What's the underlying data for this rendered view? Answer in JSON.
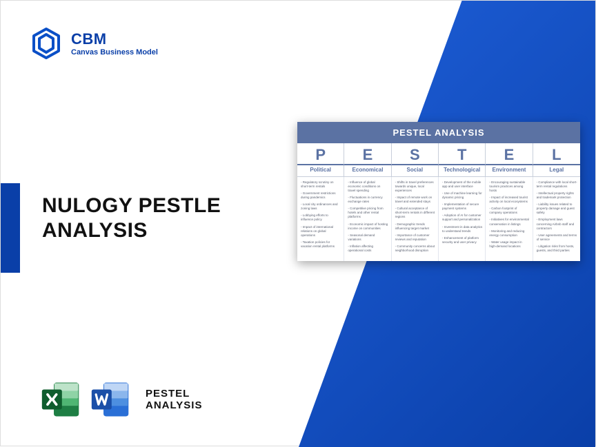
{
  "brand": {
    "name": "CBM",
    "tagline": "Canvas Business Model"
  },
  "title_line1": "NULOGY PESTLE",
  "title_line2": "ANALYSIS",
  "bottom_label_line1": "PESTEL",
  "bottom_label_line2": "ANALYSIS",
  "colors": {
    "blue_primary": "#0a3fa8",
    "blue_gradient_start": "#1e5fd9",
    "slate_header": "#5b72a3",
    "excel_green": "#1e7e44",
    "excel_green_dark": "#0f5d2e",
    "word_blue": "#2a6fd6",
    "word_blue_dark": "#1a4fa8"
  },
  "pestel": {
    "title": "PESTEL ANALYSIS",
    "columns": [
      {
        "letter": "P",
        "category": "Political",
        "items": [
          "Regulatory scrutiny on short-term rentals",
          "Government restrictions during pandemics",
          "Local city ordinances and zoning laws",
          "Lobbying efforts to influence policy",
          "Impact of international relations on global operations",
          "Taxation policies for vacation rental platforms"
        ]
      },
      {
        "letter": "E",
        "category": "Economical",
        "items": [
          "Influence of global economic conditions on travel spending",
          "Fluctuations in currency exchange rates",
          "Competitive pricing from hotels and other rental platforms",
          "Economic impact of hosting income on communities",
          "Seasonal demand variations",
          "Inflation affecting operational costs"
        ]
      },
      {
        "letter": "S",
        "category": "Social",
        "items": [
          "Shifts in travel preferences towards unique, local experiences",
          "Impact of remote work on travel and extended stays",
          "Cultural acceptance of short-term rentals in different regions",
          "Demographic trends influencing target market",
          "Importance of customer reviews and reputation",
          "Community concerns about neighborhood disruption"
        ]
      },
      {
        "letter": "T",
        "category": "Technological",
        "items": [
          "Development of the mobile app and user interface",
          "Use of machine learning for dynamic pricing",
          "Implementation of secure payment systems",
          "Adoption of AI for customer support and personalization",
          "Investment in data analytics to understand trends",
          "Enhancement of platform security and user privacy"
        ]
      },
      {
        "letter": "E",
        "category": "Environment",
        "items": [
          "Encouraging sustainable tourism practices among hosts",
          "Impact of increased tourist activity on local ecosystems",
          "Carbon footprint of company operations",
          "Initiatives for environmental conservation in listings",
          "Monitoring and reducing energy consumption",
          "Water usage impact in high-demand locations"
        ]
      },
      {
        "letter": "L",
        "category": "Legal",
        "items": [
          "Compliance with local short-term rental regulations",
          "Intellectual property rights and trademark protection",
          "Liability issues related to property damage and guest safety",
          "Employment laws concerning Airbnb staff and contractors",
          "User agreements and terms of service",
          "Litigation risks from hosts, guests, and third parties"
        ]
      }
    ]
  }
}
